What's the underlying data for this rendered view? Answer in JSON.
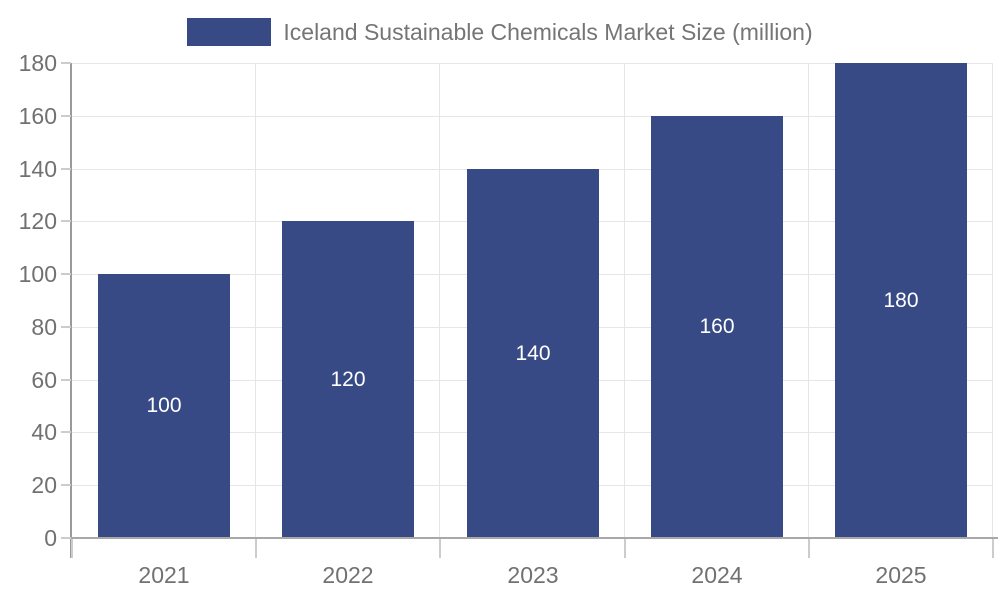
{
  "legend": {
    "items": [
      {
        "label": "Iceland Sustainable Chemicals Market Size (million)",
        "color": "#384A85"
      }
    ]
  },
  "colors": {
    "bar": "#384A85",
    "grid": "#e6e6e6",
    "axis_line": "#9a9a9a",
    "tick": "#cccccc",
    "tick_label_text": "#717171",
    "legend_text": "#757575",
    "bar_label_text": "#ffffff",
    "background": "#ffffff"
  },
  "chart_data": {
    "type": "bar",
    "title": "Iceland Sustainable Chemicals Market Size (million)",
    "categories": [
      "2021",
      "2022",
      "2023",
      "2024",
      "2025"
    ],
    "values": [
      100,
      120,
      140,
      160,
      180
    ],
    "xlabel": "",
    "ylabel": "",
    "ylim": [
      0,
      180
    ],
    "yticks": [
      0,
      20,
      40,
      60,
      80,
      100,
      120,
      140,
      160,
      180
    ],
    "grid": true,
    "vertical_gridlines": true,
    "legend_position": "top",
    "bar_label_position": "inside-center"
  }
}
